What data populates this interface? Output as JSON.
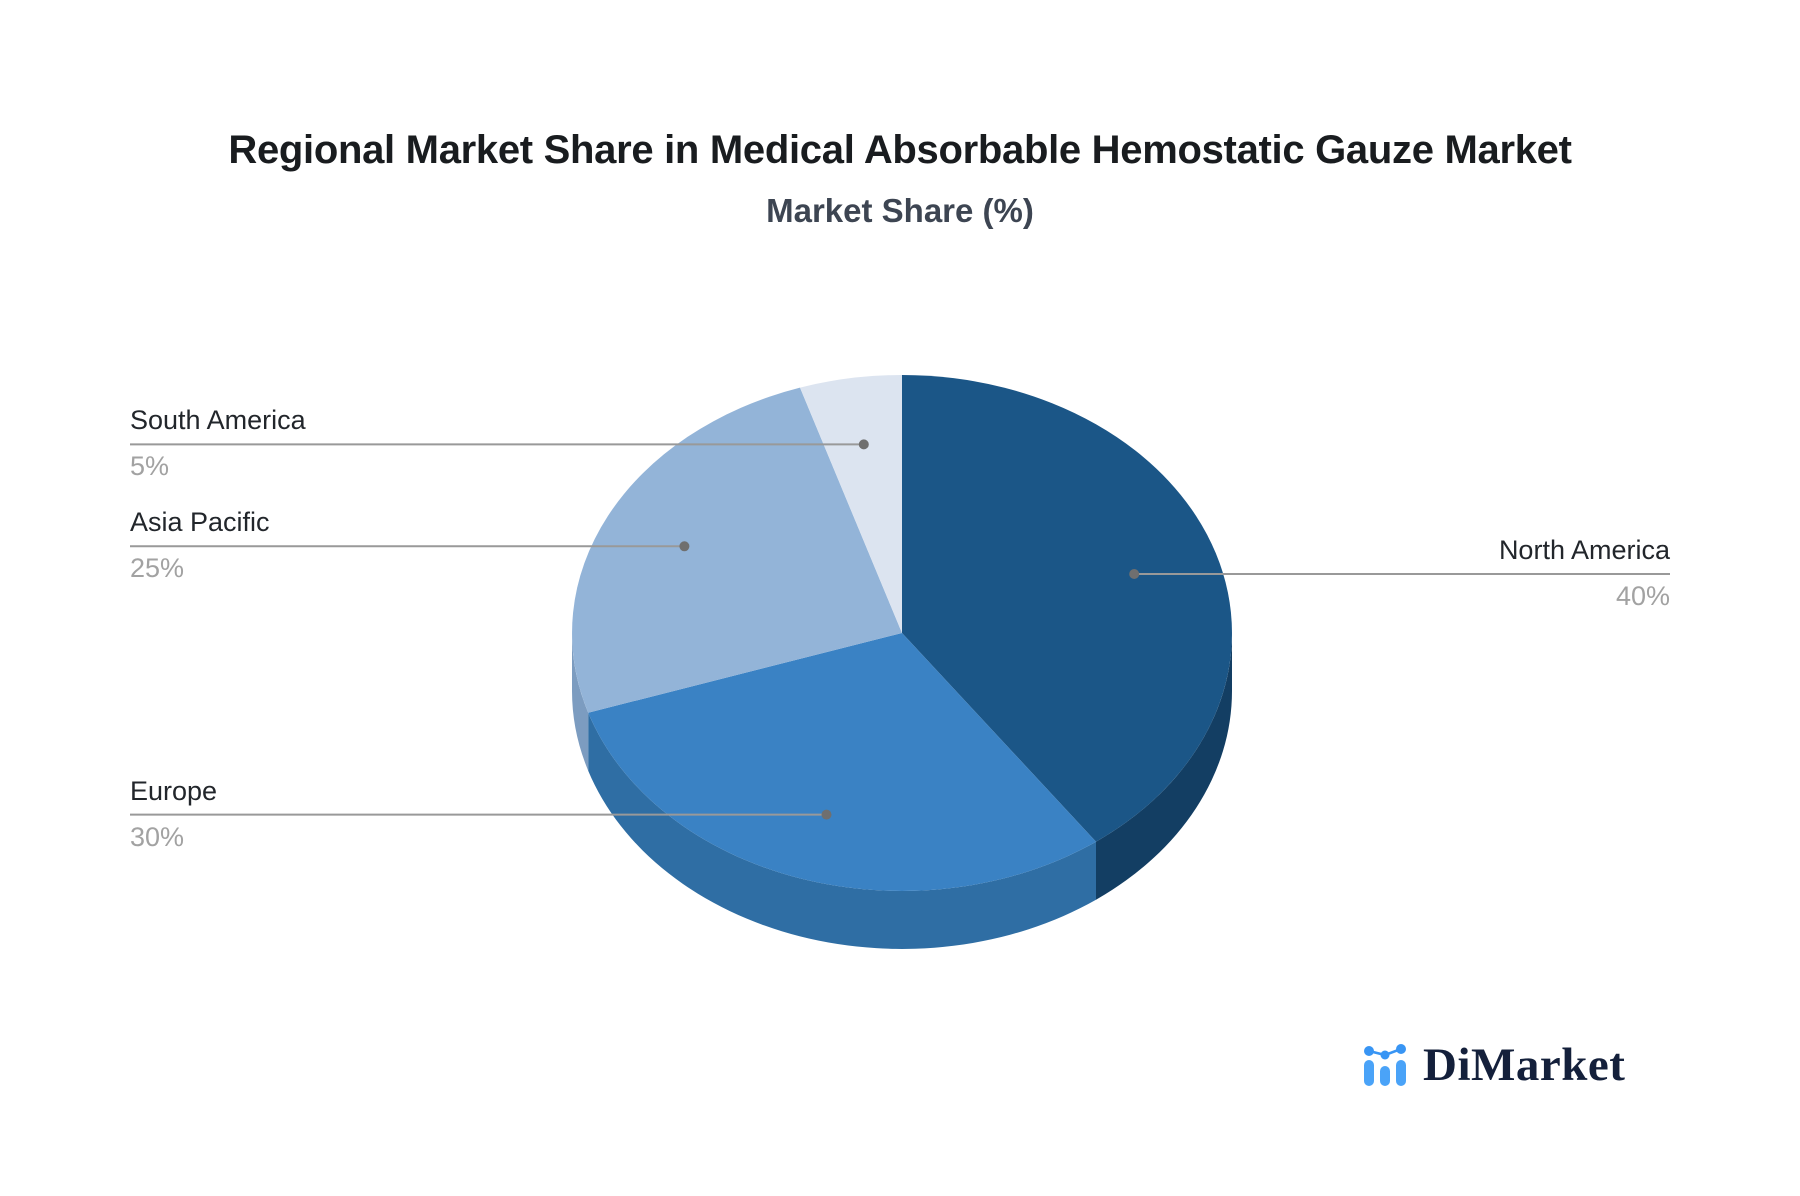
{
  "chart_data": {
    "type": "pie",
    "style": "3d",
    "title": "Regional Market Share in Medical Absorbable Hemostatic Gauze Market",
    "subtitle": "Market Share (%)",
    "unit": "%",
    "start_angle_deg": 0,
    "direction": "clockwise",
    "legend_position": "none",
    "label_style": "leader-lines",
    "slices": [
      {
        "label": "North America",
        "value": 40,
        "percent_label": "40%",
        "color": "#1B5687",
        "side_color": "#133E63",
        "label_side": "right"
      },
      {
        "label": "Europe",
        "value": 30,
        "percent_label": "30%",
        "color": "#3A82C4",
        "side_color": "#2F6EA4",
        "label_side": "left"
      },
      {
        "label": "Asia Pacific",
        "value": 25,
        "percent_label": "25%",
        "color": "#93B4D8",
        "side_color": "#7C9CC0",
        "label_side": "left"
      },
      {
        "label": "South America",
        "value": 5,
        "percent_label": "5%",
        "color": "#DCE4F0",
        "side_color": "#C4D0E2",
        "label_side": "left"
      }
    ]
  },
  "branding": {
    "logo_text": "DiMarket",
    "logo_icon": "bar-chart-logo-icon"
  },
  "colors": {
    "background": "#FFFFFF",
    "title_text": "#191C1F",
    "subtitle_text": "#3D4552",
    "label_text": "#22262B",
    "percent_text": "#A2A2A2",
    "leader_line": "#999999",
    "leader_dot": "#6F6F6F",
    "logo_text": "#14203B",
    "logo_bar": "#4AA3F8",
    "logo_accent": "#3895F4"
  }
}
